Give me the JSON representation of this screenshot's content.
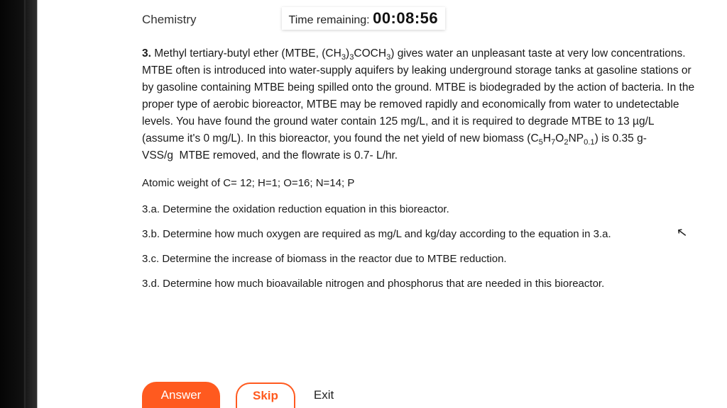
{
  "header": {
    "subject": "Chemistry",
    "time_label": "Time remaining:",
    "time_value": "00:08:56"
  },
  "question": {
    "number": "3.",
    "body_html": "Methyl tertiary-butyl ether (MTBE, (CH<sub>3</sub>)<sub>3</sub>COCH<sub>3</sub>) gives water an unpleasant taste at very low concentrations. MTBE often is introduced into water-supply aquifers by leaking underground storage tanks at gasoline stations or by gasoline containing MTBE being spilled onto the ground. MTBE is biodegraded by the action of bacteria. In the proper type of aerobic bioreactor, MTBE may be removed rapidly and economically from water to undetectable levels. You have found the ground water contain 125 mg/L, and it is required to degrade MTBE to 13 µg/L (assume it's 0 mg/L). In this bioreactor, you found the net yield of new biomass (C<sub>5</sub>H<sub>7</sub>O<sub>2</sub>NP<sub>0.1</sub>) is 0.35 g-VSS/g&nbsp;&nbsp;MTBE removed, and the flowrate is 0.7- L/hr.",
    "atomic": "Atomic weight of C= 12; H=1; O=16; N=14; P",
    "parts": {
      "a": "3.a. Determine the oxidation reduction equation in this bioreactor.",
      "b": "3.b. Determine how much oxygen are required as mg/L and kg/day according to the equation in 3.a.",
      "c": "3.c. Determine the increase of biomass in the reactor due to MTBE reduction.",
      "d": "3.d. Determine how much bioavailable nitrogen and phosphorus that are needed in this bioreactor."
    }
  },
  "actions": {
    "answer": "Answer",
    "skip": "Skip",
    "exit": "Exit"
  },
  "colors": {
    "accent": "#ff5a1f",
    "text": "#1a1a1a",
    "bg": "#ffffff"
  }
}
